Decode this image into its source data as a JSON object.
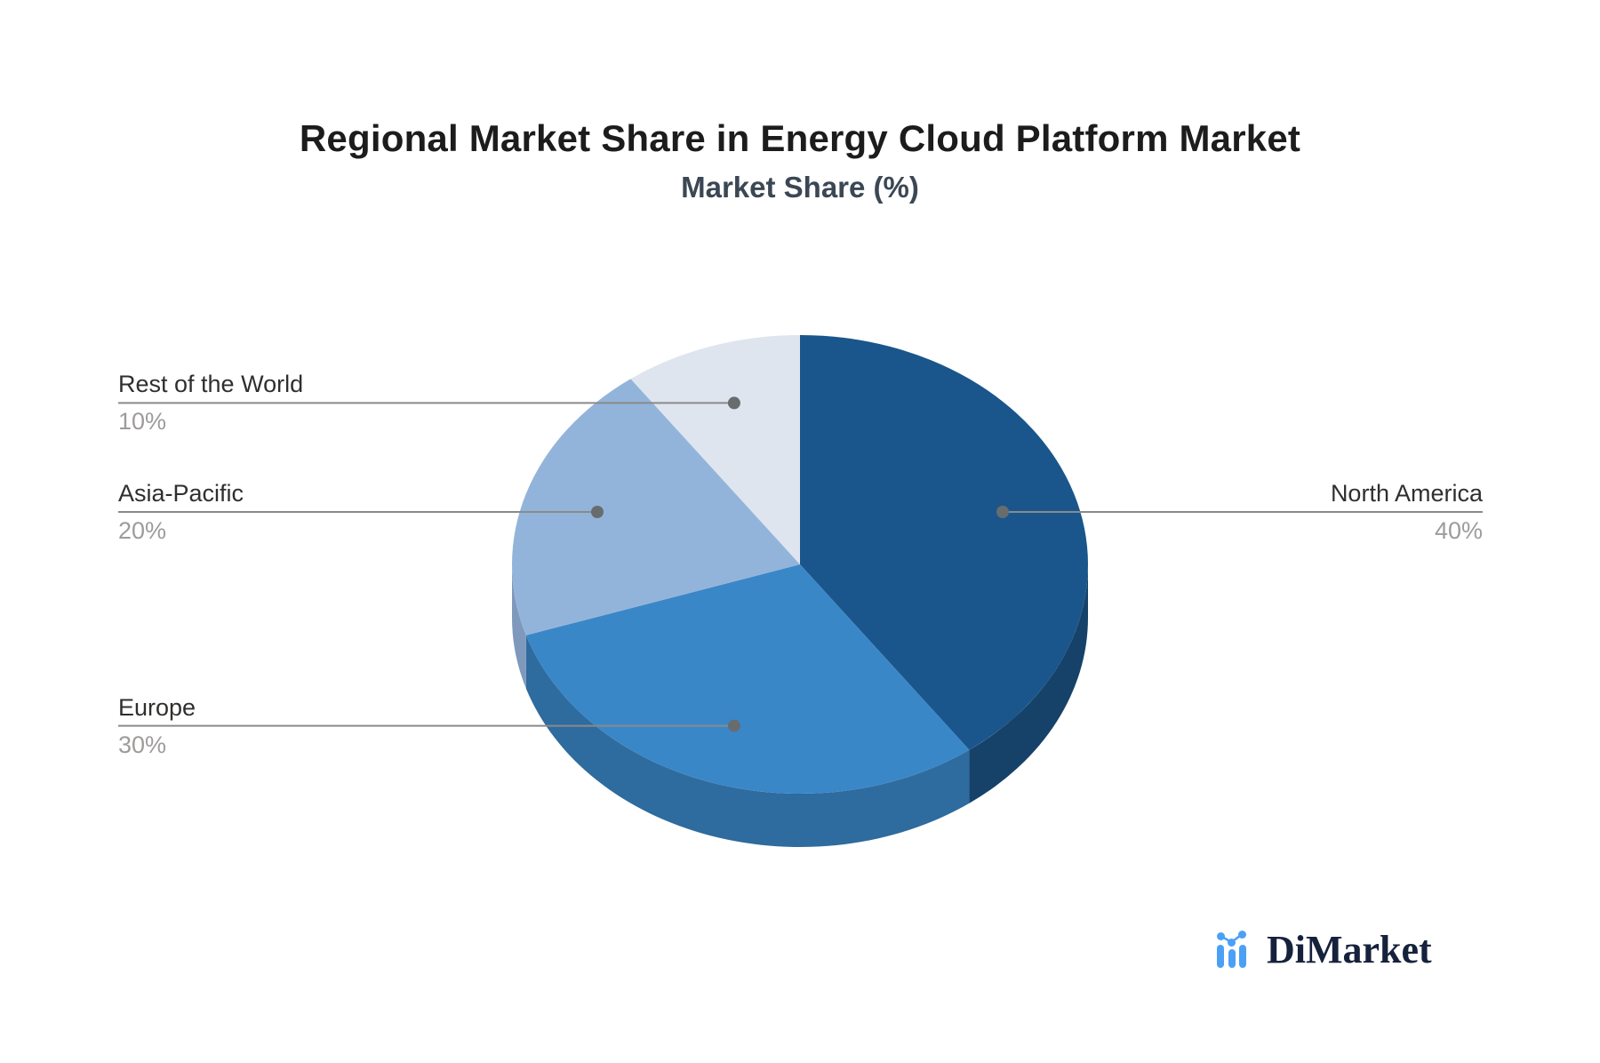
{
  "title": "Regional Market Share in Energy Cloud Platform Market",
  "subtitle": "Market Share (%)",
  "brand": {
    "name": "DiMarket"
  },
  "chart_data": {
    "type": "pie",
    "style": "3d",
    "title": "Regional Market Share in Energy Cloud Platform Market",
    "subtitle": "Market Share (%)",
    "unit": "%",
    "direction": "clockwise",
    "start_position": "12-oclock",
    "categories": [
      "North America",
      "Europe",
      "Asia-Pacific",
      "Rest of the World"
    ],
    "values": [
      40,
      30,
      20,
      10
    ],
    "value_labels": [
      "40%",
      "30%",
      "20%",
      "10%"
    ],
    "colors": [
      "#1a568b",
      "#3a87c8",
      "#93b4da",
      "#dee5ef"
    ],
    "side_colors": [
      "#164269",
      "#2e6b9e",
      "#7e99bc",
      "#c9d2e1"
    ],
    "label_side": [
      "right",
      "left",
      "left",
      "left"
    ],
    "legend_position": "callout-labels",
    "leader_line_color": "#8a8a8a",
    "leader_dot_color": "#696c6f"
  }
}
